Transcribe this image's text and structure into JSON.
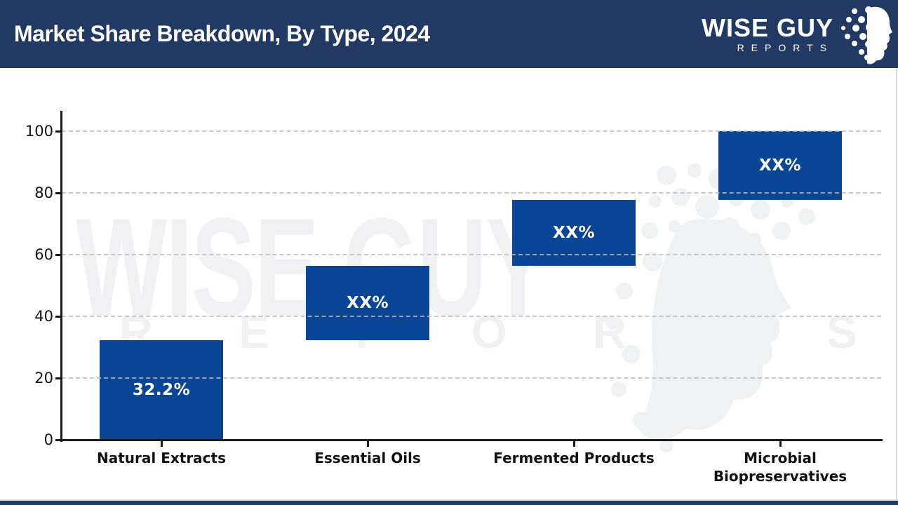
{
  "header": {
    "title": "Market Share Breakdown, By Type, 2024",
    "brand_line1": "WISE GUY",
    "brand_line2": "REPORTS"
  },
  "watermark": {
    "line1": "WISE GUY",
    "line2": "R E P O R T S"
  },
  "chart_data": {
    "type": "bar",
    "subtype": "waterfall",
    "title": "Market Share Breakdown, By Type, 2024",
    "categories": [
      "Natural Extracts",
      "Essential Oils",
      "Fermented Products",
      "Microbial Biopreservatives"
    ],
    "segments": [
      {
        "category": "Natural Extracts",
        "start": 0,
        "end": 32.2,
        "label": "32.2%"
      },
      {
        "category": "Essential Oils",
        "start": 32.2,
        "end": 56.3,
        "label": "XX%"
      },
      {
        "category": "Fermented Products",
        "start": 56.3,
        "end": 77.7,
        "label": "XX%"
      },
      {
        "category": "Microbial Biopreservatives",
        "start": 77.7,
        "end": 100,
        "label": "XX%"
      }
    ],
    "y_ticks": [
      0,
      20,
      40,
      60,
      80,
      100
    ],
    "ylim": [
      0,
      106
    ],
    "xlabel": "",
    "ylabel": "",
    "grid": "horizontal-dashed",
    "legend": "none"
  },
  "colors": {
    "header_bg": "#223a63",
    "bar": "#0a4596",
    "bar_label": "#ffffff",
    "axis": "#1a1a1a",
    "grid": "#d9d9d9",
    "watermark": "#f1f1f4",
    "footer_strip": "#223a63"
  }
}
